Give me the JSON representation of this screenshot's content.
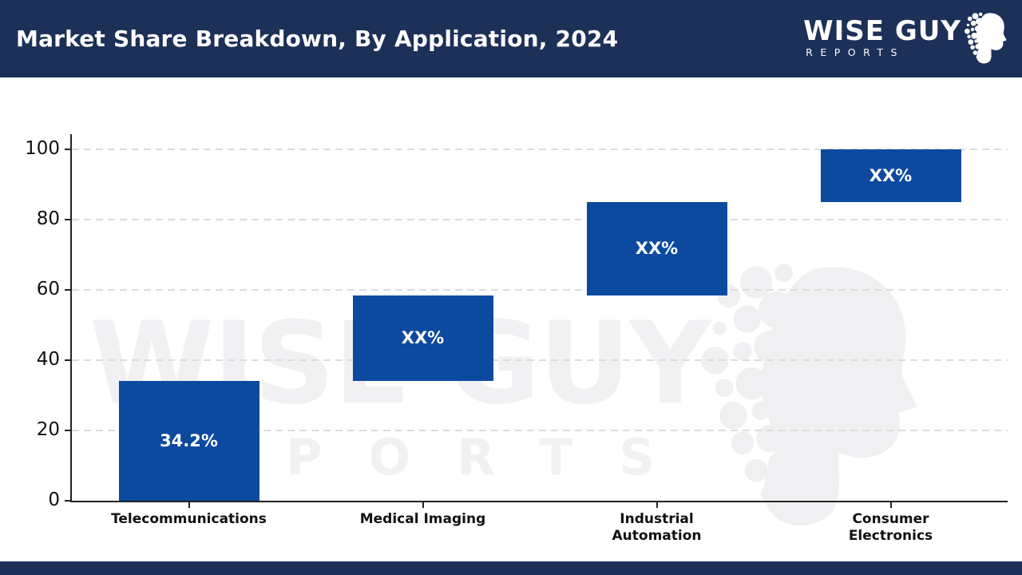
{
  "header": {
    "title": "Market Share Breakdown, By Application, 2024",
    "bg_color": "#1c3058",
    "logo": {
      "line1": "WISE GUY",
      "line2": "REPORTS",
      "icon": "dotted-head-profile"
    }
  },
  "watermark": {
    "line1": "WISE GUY",
    "line2": "REPORTS",
    "icon": "dotted-head-profile",
    "color": "#f1f1f4"
  },
  "footer": {
    "bg_color": "#1c3058"
  },
  "chart_data": {
    "type": "bar",
    "subtype": "waterfall",
    "title": "Market Share Breakdown, By Application, 2024",
    "categories": [
      "Telecommunications",
      "Medical Imaging",
      "Industrial\nAutomation",
      "Consumer\nElectronics"
    ],
    "segments": [
      {
        "category": "Telecommunications",
        "start": 0,
        "end": 34.2,
        "label": "34.2%"
      },
      {
        "category": "Medical Imaging",
        "start": 34.2,
        "end": 58.5,
        "label": "XX%"
      },
      {
        "category": "Industrial Automation",
        "start": 58.5,
        "end": 85,
        "label": "XX%"
      },
      {
        "category": "Consumer Electronics",
        "start": 85,
        "end": 100,
        "label": "XX%"
      }
    ],
    "xlabel": "",
    "ylabel": "",
    "ylim": [
      0,
      100
    ],
    "y_ticks": [
      0,
      20,
      40,
      60,
      80,
      100
    ],
    "grid": "horizontal-dashed",
    "legend": "none",
    "bar_color": "#0c4aa0",
    "bar_label_color": "#ffffff"
  }
}
